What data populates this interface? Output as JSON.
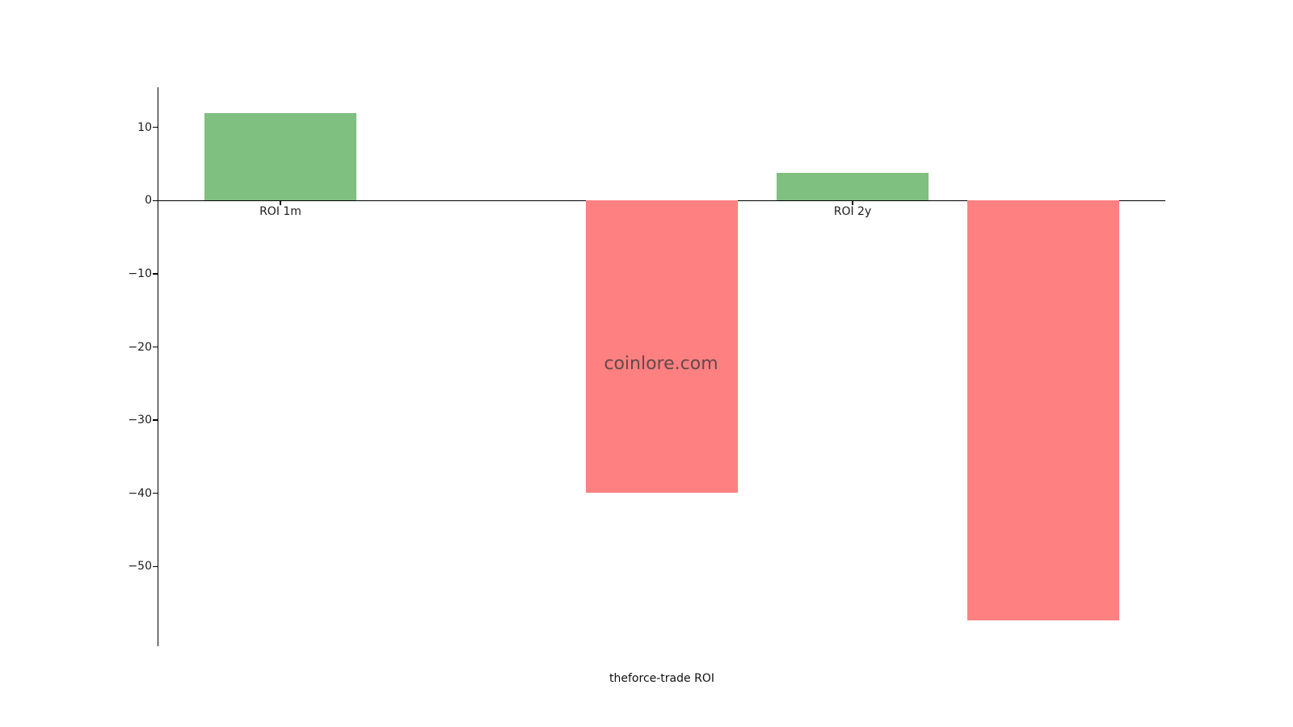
{
  "chart_data": {
    "type": "bar",
    "title": "theforce-trade ROI",
    "watermark": "coinlore.com",
    "categories": [
      "ROI 1m",
      "",
      "",
      "ROI 2y",
      ""
    ],
    "x": [
      0,
      1,
      2,
      3,
      4
    ],
    "values": [
      12.0,
      0,
      -39.9,
      3.8,
      -57.4
    ],
    "series": [
      {
        "name": "ROI",
        "values": [
          12.0,
          0,
          -39.9,
          3.8,
          -57.4
        ]
      }
    ],
    "bar_width": 0.8,
    "xlim": [
      -0.64,
      4.64
    ],
    "ylim": [
      -60.9,
      15.5
    ],
    "yticks": [
      {
        "v": 10,
        "label": "10"
      },
      {
        "v": 0,
        "label": "0"
      },
      {
        "v": -10,
        "label": "−10"
      },
      {
        "v": -20,
        "label": "−20"
      },
      {
        "v": -30,
        "label": "−30"
      },
      {
        "v": -40,
        "label": "−40"
      },
      {
        "v": -50,
        "label": "−50"
      }
    ],
    "grid": false,
    "legend": null,
    "colors": {
      "positive": "#7fbf7f",
      "negative": "#ff8080",
      "axis": "#000000",
      "tick_text": "#1c1c1c",
      "watermark": "#3e3e3e"
    }
  }
}
